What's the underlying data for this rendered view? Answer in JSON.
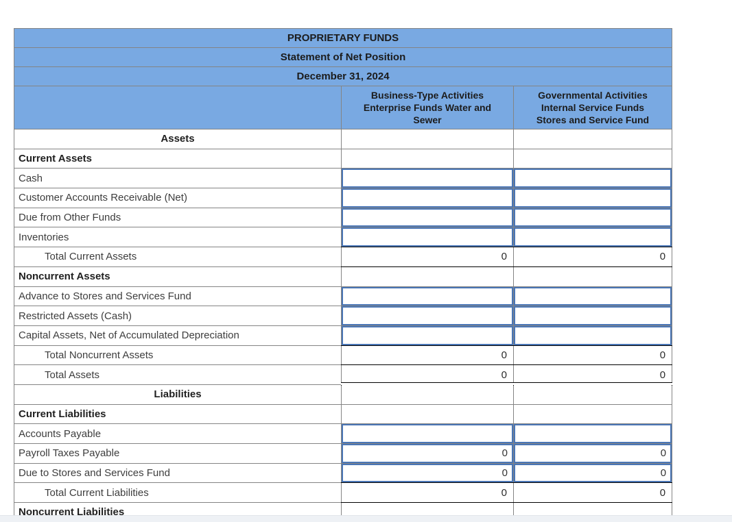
{
  "colors": {
    "header_bg": "#79A9E2",
    "input_border": "#4A76B6",
    "grid_line": "#848484",
    "total_line": "#000000",
    "bottom_band": "#eef1f5"
  },
  "table": {
    "titles": [
      "PROPRIETARY FUNDS",
      "Statement of Net Position",
      "December 31, 2024"
    ],
    "col_headers": [
      "Business-Type Activities\nEnterprise Funds Water and\nSewer",
      "Governmental Activities\nInternal Service Funds\nStores and Service Fund"
    ],
    "rows": [
      {
        "type": "section-center",
        "label": "Assets",
        "values": [
          "",
          ""
        ],
        "inputs": false
      },
      {
        "type": "section-left",
        "label": "Current Assets",
        "values": [
          "",
          ""
        ],
        "inputs": false
      },
      {
        "type": "item",
        "label": "Cash",
        "values": [
          "",
          ""
        ],
        "inputs": true
      },
      {
        "type": "item",
        "label": "Customer Accounts Receivable (Net)",
        "values": [
          "",
          ""
        ],
        "inputs": true
      },
      {
        "type": "item",
        "label": "Due from Other Funds",
        "values": [
          "",
          ""
        ],
        "inputs": true
      },
      {
        "type": "item",
        "label": "Inventories",
        "values": [
          "",
          ""
        ],
        "inputs": true
      },
      {
        "type": "total",
        "label": "Total Current Assets",
        "values": [
          "0",
          "0"
        ],
        "inputs": false
      },
      {
        "type": "section-left",
        "label": "Noncurrent Assets",
        "values": [
          "",
          ""
        ],
        "inputs": false
      },
      {
        "type": "item",
        "label": "Advance to Stores and Services Fund",
        "values": [
          "",
          ""
        ],
        "inputs": true
      },
      {
        "type": "item",
        "label": "Restricted Assets (Cash)",
        "values": [
          "",
          ""
        ],
        "inputs": true
      },
      {
        "type": "item",
        "label": "Capital Assets, Net of Accumulated Depreciation",
        "values": [
          "",
          ""
        ],
        "inputs": true
      },
      {
        "type": "total",
        "label": "Total Noncurrent Assets",
        "values": [
          "0",
          "0"
        ],
        "inputs": false
      },
      {
        "type": "total-final",
        "label": "Total Assets",
        "values": [
          "0",
          "0"
        ],
        "inputs": false
      },
      {
        "type": "section-center",
        "label": "Liabilities",
        "values": [
          "",
          ""
        ],
        "inputs": false
      },
      {
        "type": "section-left",
        "label": "Current Liabilities",
        "values": [
          "",
          ""
        ],
        "inputs": false
      },
      {
        "type": "item",
        "label": "Accounts Payable",
        "values": [
          "",
          ""
        ],
        "inputs": true
      },
      {
        "type": "item",
        "label": "Payroll Taxes Payable",
        "values": [
          "0",
          "0"
        ],
        "inputs": true
      },
      {
        "type": "item",
        "label": "Due to Stores and Services Fund",
        "values": [
          "0",
          "0"
        ],
        "inputs": true
      },
      {
        "type": "total",
        "label": "Total Current Liabilities",
        "values": [
          "0",
          "0"
        ],
        "inputs": false
      },
      {
        "type": "section-left",
        "label": "Noncurrent Liabilities",
        "values": [
          "",
          ""
        ],
        "inputs": false
      }
    ]
  }
}
